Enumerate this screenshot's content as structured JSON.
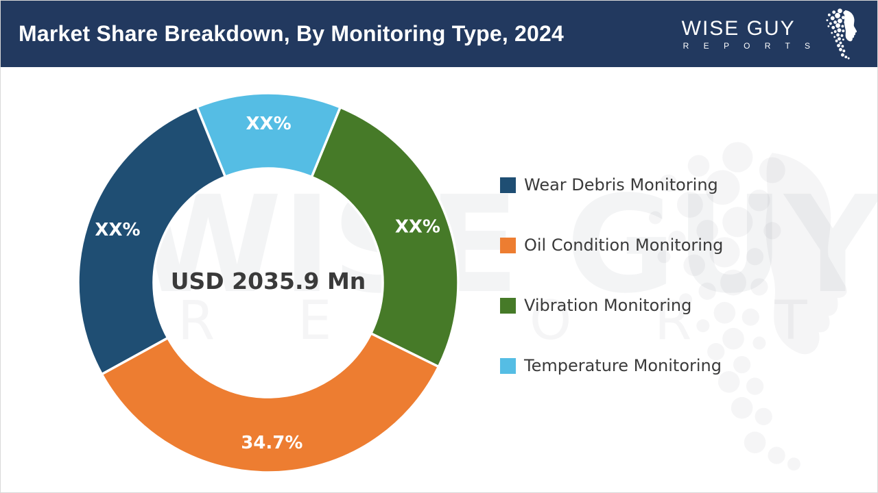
{
  "header": {
    "title": "Market Share Breakdown, By Monitoring Type, 2024",
    "bg_color": "#22395F",
    "brand": {
      "line1": "WISE GUY",
      "line2": "R E P O R T S"
    }
  },
  "watermark": {
    "line1": "WISE GUY",
    "line2": "R E P O R T S"
  },
  "chart_data": {
    "type": "pie",
    "donut": true,
    "title": "Market Share Breakdown, By Monitoring Type, 2024",
    "center_label": "USD 2035.9 Mn",
    "legend_position": "right",
    "start_bearing_deg": -22,
    "outer_radius": 277,
    "inner_radius": 167,
    "label_radius": 233,
    "separator_color": "#ffffff",
    "value_label_color": "#ffffff",
    "segments": [
      {
        "label": "Wear Debris Monitoring",
        "display_value": "XX%",
        "share_pct_est": 26.9,
        "color": "#1F4E73"
      },
      {
        "label": "Oil Condition Monitoring",
        "display_value": "34.7%",
        "share_pct_est": 34.7,
        "color": "#ED7D31"
      },
      {
        "label": "Vibration Monitoring",
        "display_value": "XX%",
        "share_pct_est": 26.1,
        "color": "#467A28"
      },
      {
        "label": "Temperature Monitoring",
        "display_value": "XX%",
        "share_pct_est": 12.3,
        "color": "#55BDE4"
      }
    ]
  }
}
